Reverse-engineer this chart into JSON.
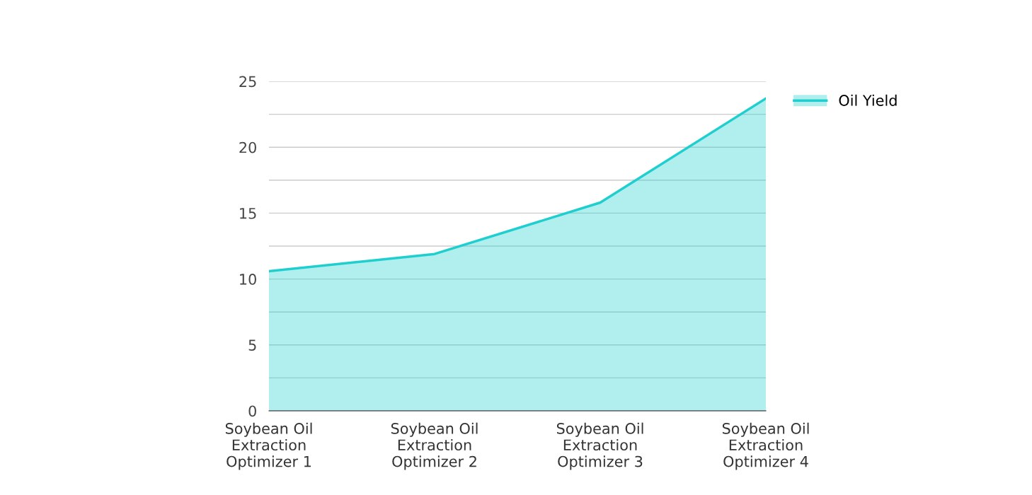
{
  "chart_data": {
    "type": "area",
    "categories": [
      "Soybean Oil\nExtraction\nOptimizer 1",
      "Soybean Oil\nExtraction\nOptimizer 2",
      "Soybean Oil\nExtraction\nOptimizer 3",
      "Soybean Oil\nExtraction\nOptimizer 4"
    ],
    "series": [
      {
        "name": "Oil Yield",
        "color": "#1fcfcf",
        "values": [
          10.6,
          11.9,
          15.8,
          23.7
        ]
      }
    ],
    "ylim": [
      0,
      25
    ],
    "yticks": [
      0,
      {
        "value": 2.5,
        "label": null
      },
      5,
      {
        "value": 7.5,
        "label": null
      },
      10,
      {
        "value": 12.5,
        "label": null
      },
      15,
      {
        "value": 17.5,
        "label": null
      },
      20,
      {
        "value": 22.5,
        "label": null
      },
      25
    ],
    "grid": "y",
    "legend": "top right"
  }
}
